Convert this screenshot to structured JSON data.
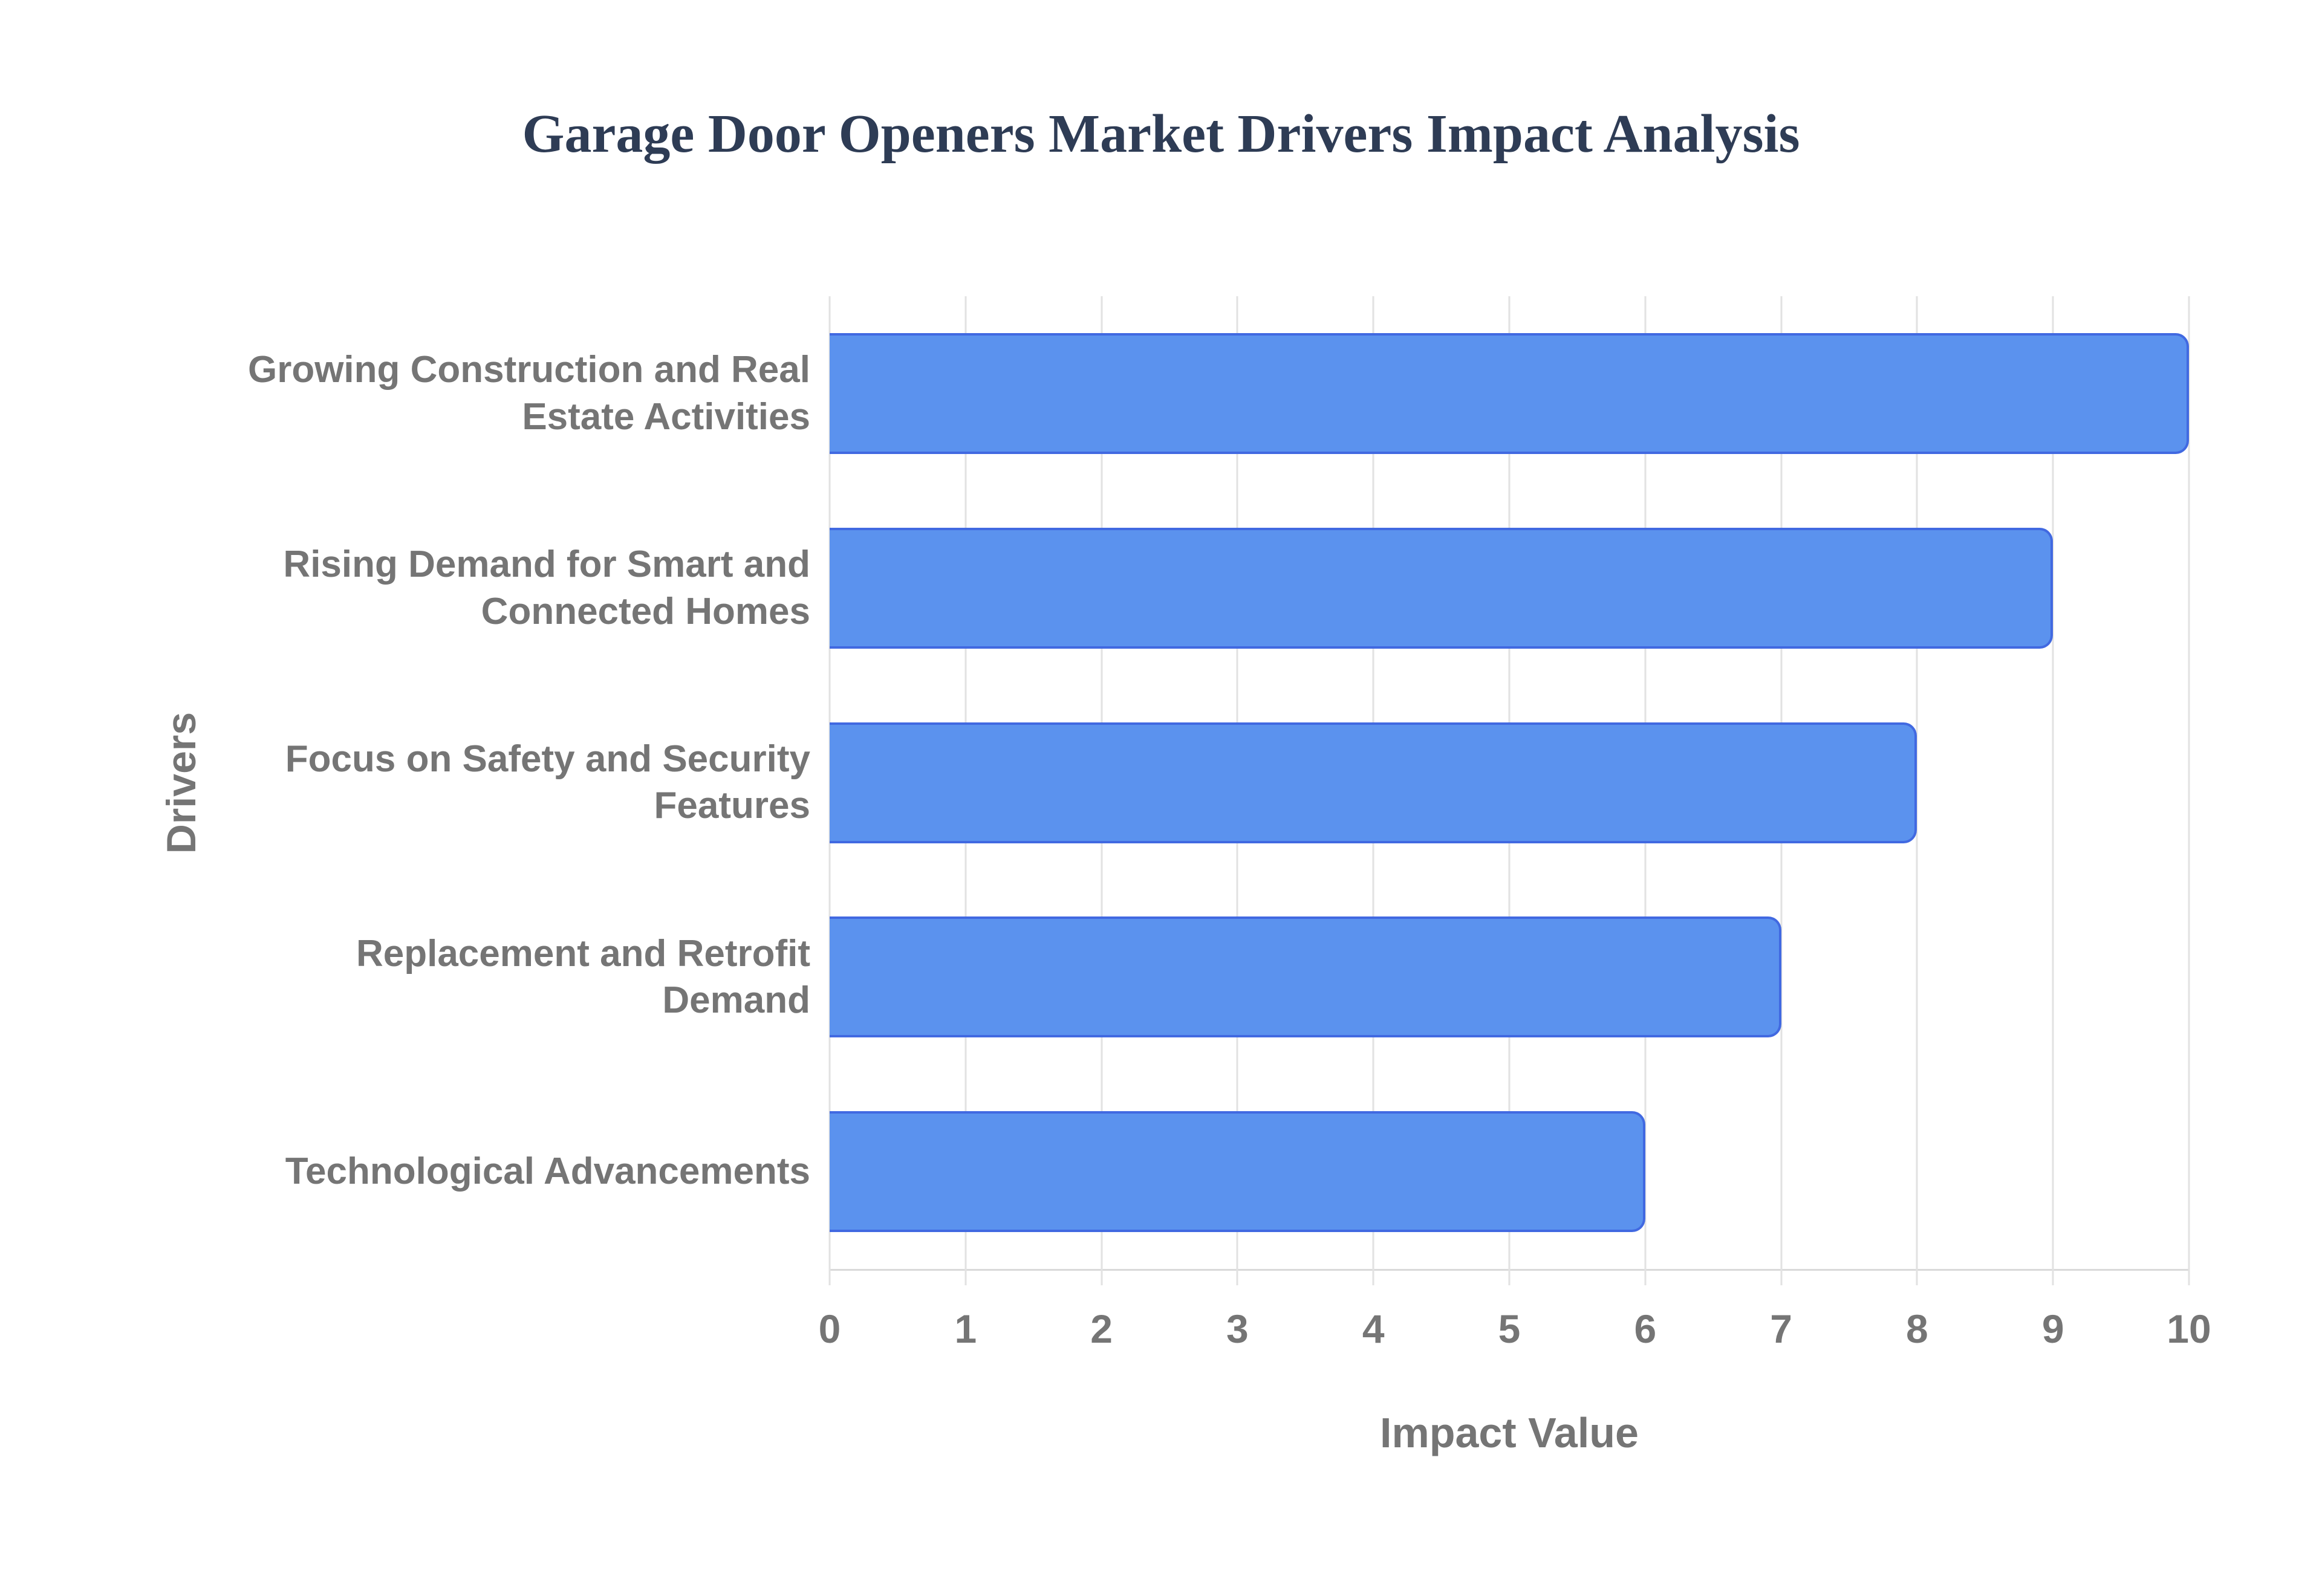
{
  "chart_data": {
    "type": "bar",
    "orientation": "horizontal",
    "title": "Garage Door Openers Market Drivers Impact Analysis",
    "categories": [
      "Growing Construction and Real Estate Activities",
      "Rising Demand for Smart and Connected Homes",
      "Focus on Safety and Security Features",
      "Replacement and Retrofit Demand",
      "Technological Advancements"
    ],
    "values": [
      10,
      9,
      8,
      7,
      6
    ],
    "xlabel": "Impact Value",
    "ylabel": "Drivers",
    "xlim": [
      0,
      10
    ],
    "xticks": [
      0,
      1,
      2,
      3,
      4,
      5,
      6,
      7,
      8,
      9,
      10
    ],
    "grid": "vertical-only",
    "legend": "none",
    "colors": {
      "background": "#ffffff",
      "bar_fill": "#5b92ee",
      "bar_border": "#4169e1",
      "grid_line": "#e2e2e2",
      "axis_line": "#d9d9d9",
      "label_text": "#757575",
      "title_text": "#2e3c55"
    }
  }
}
